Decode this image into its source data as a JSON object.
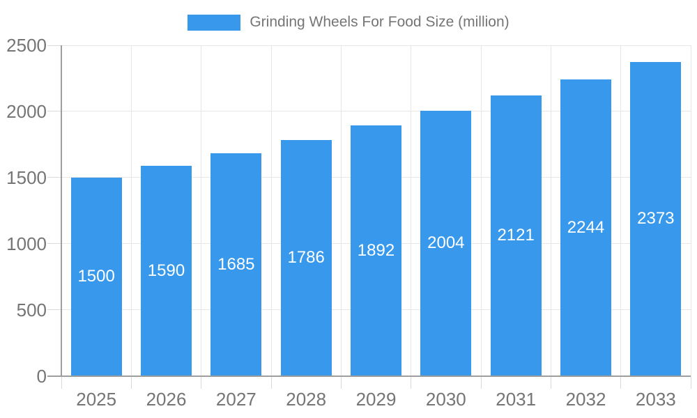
{
  "legend": {
    "label": "Grinding Wheels For Food Size (million)"
  },
  "chart_data": {
    "type": "bar",
    "title": "Grinding Wheels For Food Size (million)",
    "categories": [
      "2025",
      "2026",
      "2027",
      "2028",
      "2029",
      "2030",
      "2031",
      "2032",
      "2033"
    ],
    "values": [
      1500,
      1590,
      1685,
      1786,
      1892,
      2004,
      2121,
      2244,
      2373
    ],
    "xlabel": "",
    "ylabel": "",
    "ylim": [
      0,
      2500
    ],
    "yticks": [
      0,
      500,
      1000,
      1500,
      2000,
      2500
    ],
    "grid": true,
    "legend_position": "top",
    "colors": {
      "bar": "#3899EC",
      "bar_label": "#FFFFFF",
      "axis_text": "#757575",
      "grid_line": "#E6E6E6",
      "tick_line": "#D9D9D9",
      "axis_line": "#9E9E9E",
      "background": "#FFFFFF"
    }
  }
}
